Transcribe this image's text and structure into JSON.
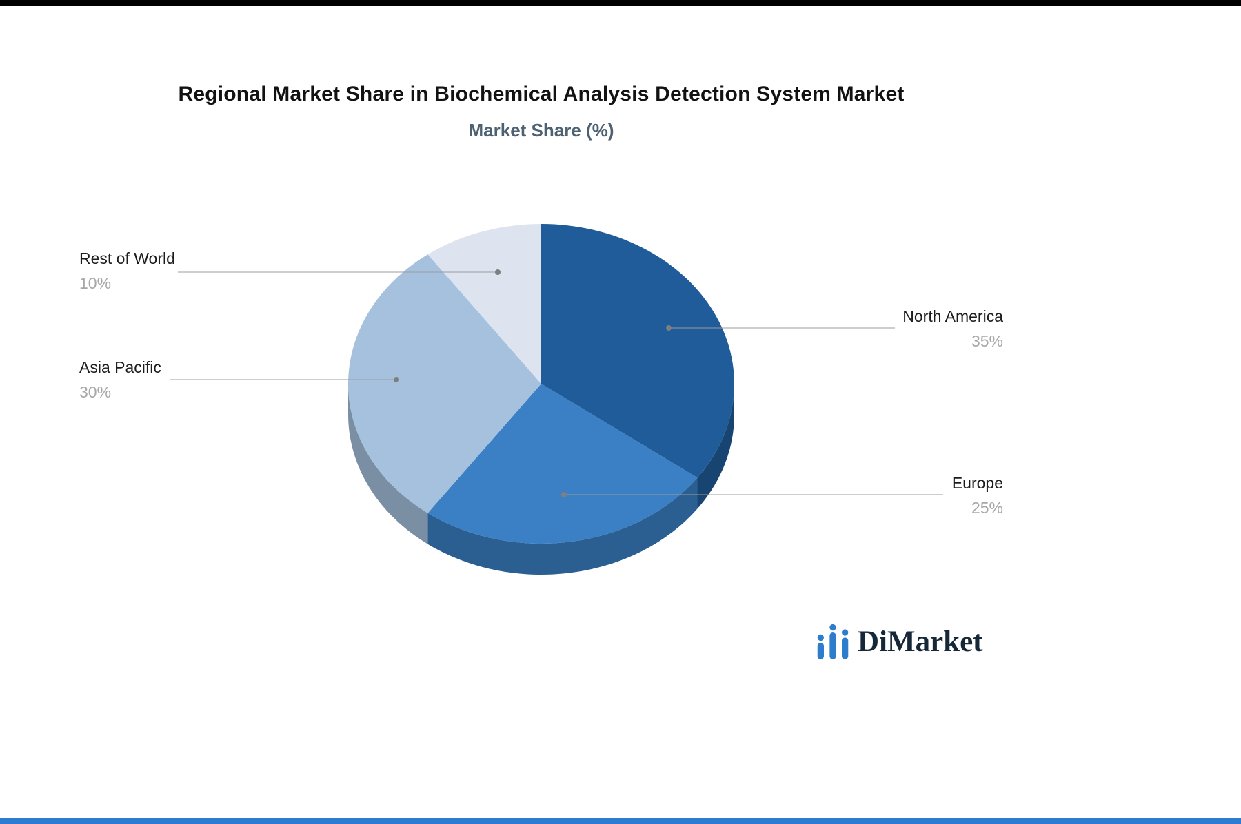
{
  "chart_data": {
    "type": "pie",
    "title": "Regional Market Share in Biochemical Analysis Detection System Market",
    "subtitle": "Market Share (%)",
    "unit": "%",
    "style": "3d",
    "start_angle_deg_from_top": 0,
    "direction": "clockwise",
    "legend": "none",
    "label_style": "outside-leader-lines",
    "slices": [
      {
        "label": "North America",
        "value": 35,
        "display": "35%",
        "color": "#1f5c99"
      },
      {
        "label": "Europe",
        "value": 25,
        "display": "25%",
        "color": "#3b80c4"
      },
      {
        "label": "Asia Pacific",
        "value": 30,
        "display": "30%",
        "color": "#a6c1de"
      },
      {
        "label": "Rest of World",
        "value": 10,
        "display": "10%",
        "color": "#dde4ef"
      }
    ]
  },
  "branding": {
    "logo_text": "DiMarket",
    "logo_icon": "bar-chart-icon",
    "logo_color": "#2e7dcd"
  }
}
